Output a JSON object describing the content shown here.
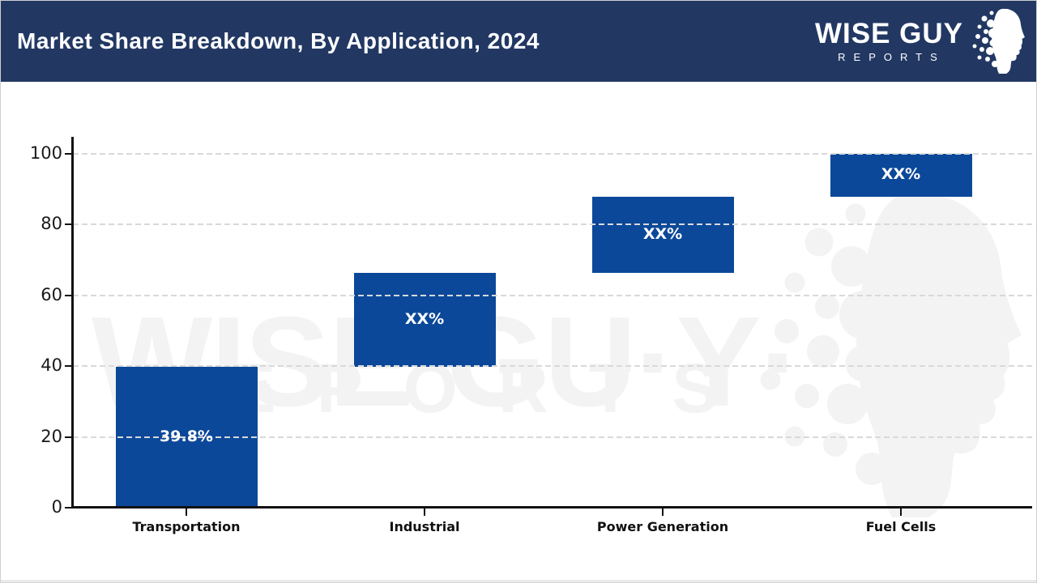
{
  "header": {
    "title": "Market Share Breakdown, By Application, 2024",
    "logo": {
      "line1": "WISE GUY",
      "line2": "REPORTS"
    }
  },
  "watermark": {
    "line1": "WISE GU·Y·",
    "line2": "REPORTS"
  },
  "chart_data": {
    "type": "bar",
    "subtype": "floating-waterfall",
    "title": "Market Share Breakdown, By Application, 2024",
    "categories": [
      "Transportation",
      "Industrial",
      "Power Generation",
      "Fuel Cells"
    ],
    "series": [
      {
        "name": "Market Share",
        "segments": [
          {
            "category": "Transportation",
            "from": 0,
            "to": 39.8,
            "label": "39.8%"
          },
          {
            "category": "Industrial",
            "from": 39.8,
            "to": 66.4,
            "label": "XX%"
          },
          {
            "category": "Power Generation",
            "from": 66.4,
            "to": 87.7,
            "label": "XX%"
          },
          {
            "category": "Fuel Cells",
            "from": 87.7,
            "to": 100,
            "label": "XX%"
          }
        ]
      }
    ],
    "xlabel": "",
    "ylabel": "",
    "ylim": [
      0,
      100
    ],
    "yticks": [
      0,
      20,
      40,
      60,
      80,
      100
    ],
    "grid": "horizontal-dashed",
    "legend": "none",
    "bar_color": "#0b4899",
    "bar_label_color": "#ffffff"
  },
  "colors": {
    "header_bg": "#223863",
    "title_text": "#ffffff",
    "bar": "#0b4899",
    "axis": "#111111",
    "gridline": "#d9d9d9",
    "watermark": "#f3f3f3"
  }
}
